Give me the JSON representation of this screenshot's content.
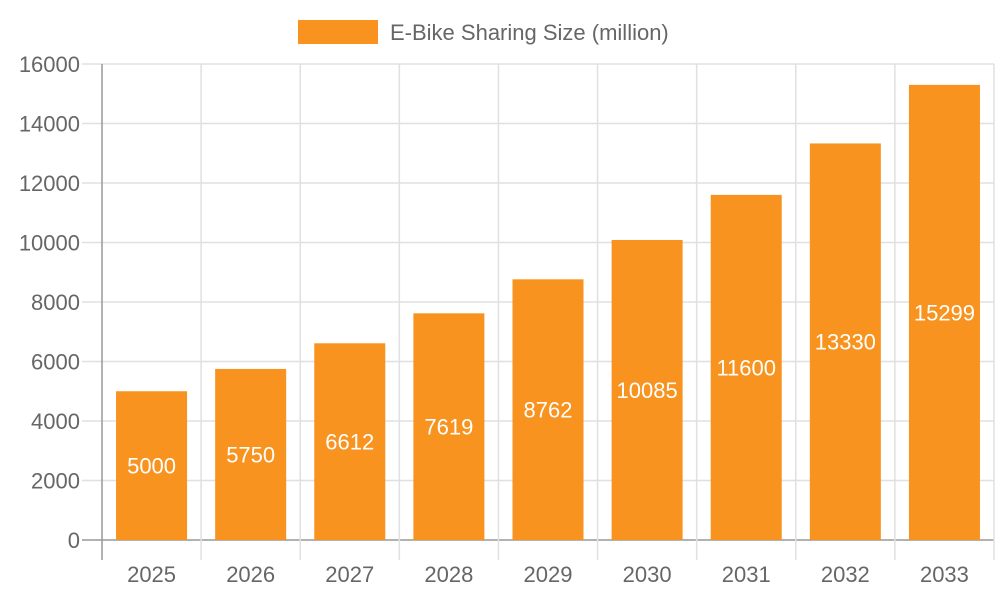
{
  "chart_data": {
    "type": "bar",
    "title": "",
    "xlabel": "",
    "ylabel": "",
    "categories": [
      "2025",
      "2026",
      "2027",
      "2028",
      "2029",
      "2030",
      "2031",
      "2032",
      "2033"
    ],
    "series": [
      {
        "name": "E-Bike Sharing Size (million)",
        "values": [
          5000,
          5750,
          6612,
          7619,
          8762,
          10085,
          11600,
          13330,
          15299
        ],
        "color": "#F7931E"
      }
    ],
    "ylim": [
      0,
      16000
    ],
    "yticks": [
      0,
      2000,
      4000,
      6000,
      8000,
      10000,
      12000,
      14000,
      16000
    ],
    "grid": true,
    "legend": "top-center",
    "data_labels": true
  }
}
